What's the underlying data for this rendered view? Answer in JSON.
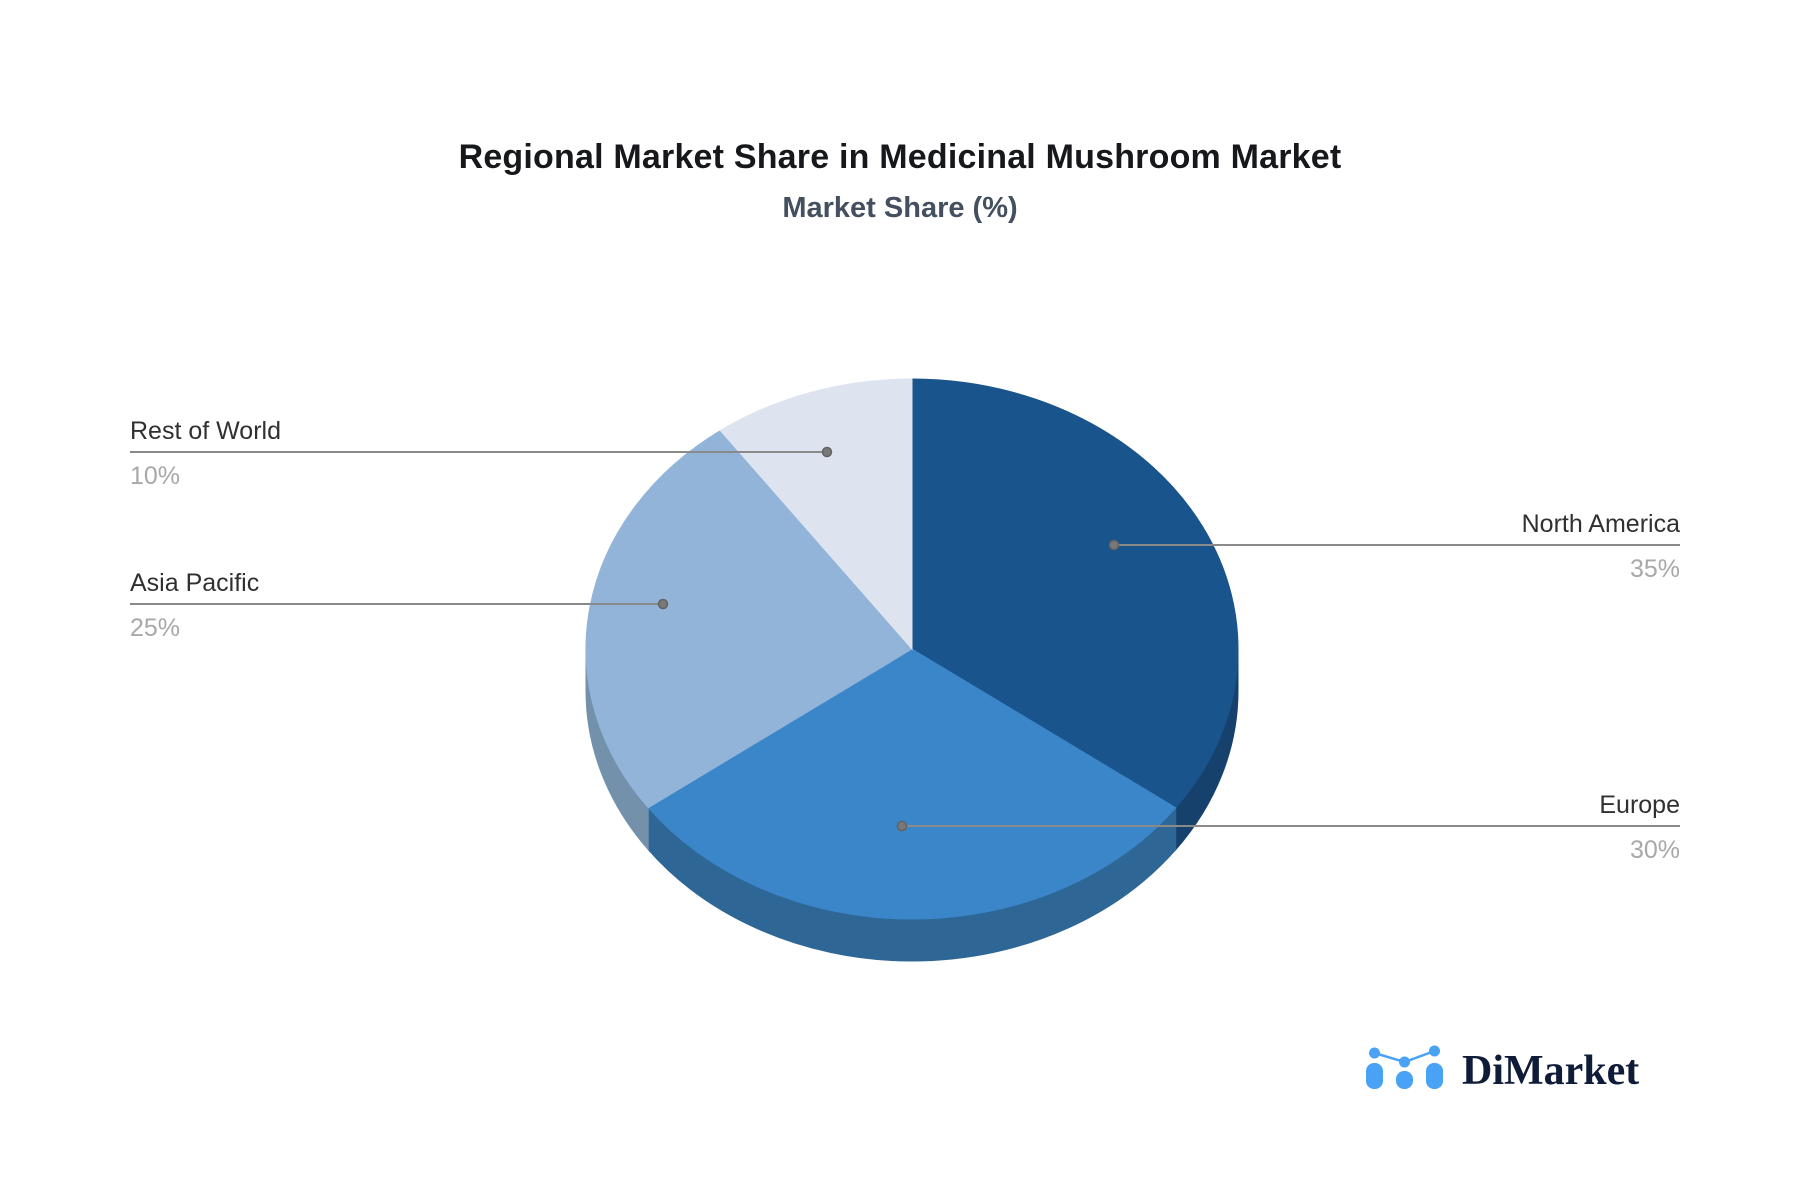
{
  "chart_data": {
    "type": "pie",
    "style": "3d-pie",
    "title": "Regional Market Share in Medicinal Mushroom Market",
    "subtitle": "Market Share (%)",
    "unit": "%",
    "start_angle_deg": 0,
    "direction": "clockwise",
    "slices": [
      {
        "label": "North America",
        "value": 35,
        "pct_label": "35%",
        "color": "#1a548c",
        "side_color": "#16416d"
      },
      {
        "label": "Europe",
        "value": 30,
        "pct_label": "30%",
        "color": "#3a86c9",
        "side_color": "#2e6796"
      },
      {
        "label": "Asia Pacific",
        "value": 25,
        "pct_label": "25%",
        "color": "#92b4d9",
        "side_color": "#7491ac"
      },
      {
        "label": "Rest of World",
        "value": 10,
        "pct_label": "10%",
        "color": "#dde4ef",
        "side_color": "#c2cad8"
      }
    ],
    "legend_position": "callout-labels",
    "grid": false,
    "label_name_color": "#303030",
    "label_pct_color": "#a8a8a8",
    "connector_color": "#8a8a8a"
  },
  "branding": {
    "logo_text": "DiMarket",
    "logo_icon": "bar-chart-trend-icon",
    "logo_icon_color": "#4aa2f5",
    "logo_text_color": "#0f1c38"
  }
}
